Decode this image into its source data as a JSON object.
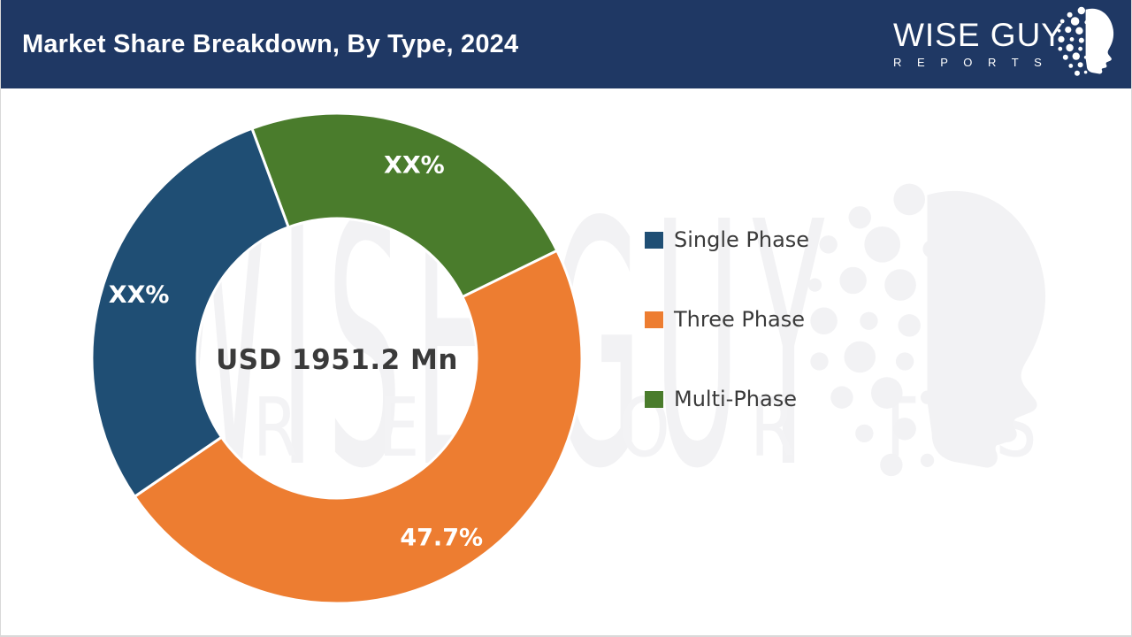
{
  "header": {
    "title": "Market Share Breakdown, By Type, 2024",
    "bg_color": "#1F3864",
    "logo": {
      "line1": "WISE GUY",
      "line2": "R E P O R T S"
    }
  },
  "watermark": {
    "line1": "WISE GUY",
    "line2": "R E P O R T S"
  },
  "chart_data": {
    "type": "donut",
    "title": "Market Share Breakdown, By Type, 2024",
    "center_label": "USD 1951.2 Mn",
    "start_angle_deg": 110.3,
    "direction": "clockwise",
    "donut_hole_ratio": 0.57,
    "legend_position": "right",
    "segments": [
      {
        "label": "Multi-Phase",
        "value_label": "XX%",
        "value_pct": 23.4,
        "color": "#4A7C2C"
      },
      {
        "label": "Three Phase",
        "value_label": "47.7%",
        "value_pct": 47.7,
        "color": "#ED7D31"
      },
      {
        "label": "Single Phase",
        "value_label": "XX%",
        "value_pct": 28.9,
        "color": "#1F4E74"
      }
    ],
    "legend": [
      {
        "label": "Single Phase",
        "color": "#1F4E74"
      },
      {
        "label": "Three Phase",
        "color": "#ED7D31"
      },
      {
        "label": "Multi-Phase",
        "color": "#4A7C2C"
      }
    ]
  }
}
